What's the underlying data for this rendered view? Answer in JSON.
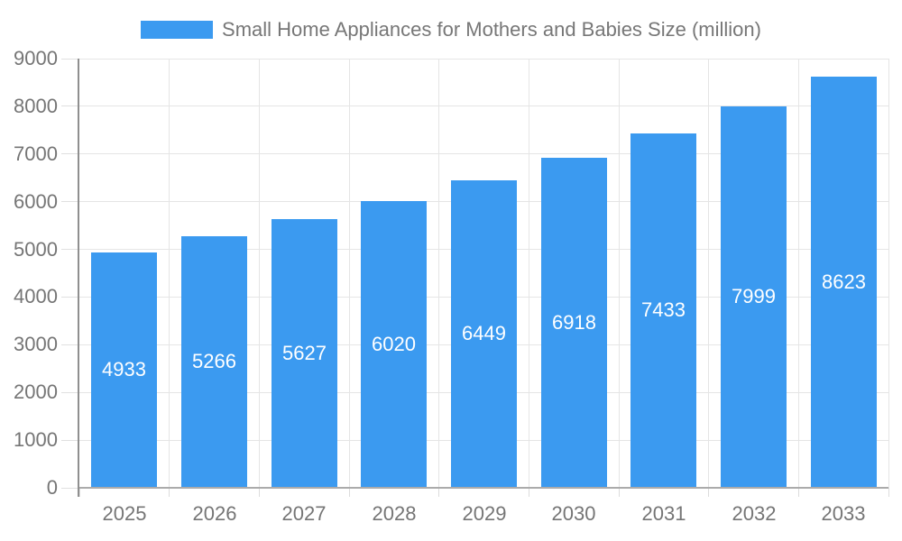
{
  "legend": {
    "label": "Small Home Appliances for Mothers and Babies Size (million)"
  },
  "chart_data": {
    "type": "bar",
    "title": "Small Home Appliances for Mothers and Babies Size (million)",
    "categories": [
      "2025",
      "2026",
      "2027",
      "2028",
      "2029",
      "2030",
      "2031",
      "2032",
      "2033"
    ],
    "values": [
      4933,
      5266,
      5627,
      6020,
      6449,
      6918,
      7433,
      7999,
      8623
    ],
    "xlabel": "",
    "ylabel": "",
    "ylim": [
      0,
      9000
    ],
    "ytick_step": 1000,
    "grid": true,
    "legend_position": "top",
    "bar_labels_inside": true,
    "colors": {
      "bar": "#3b9af0",
      "gridline": "#e5e5e5",
      "axis_y": "#8f8f8f",
      "axis_x": "#ababab",
      "tick_text": "#757575",
      "legend_text": "#777777",
      "bar_label_text": "#ffffff",
      "background": "#ffffff"
    }
  }
}
